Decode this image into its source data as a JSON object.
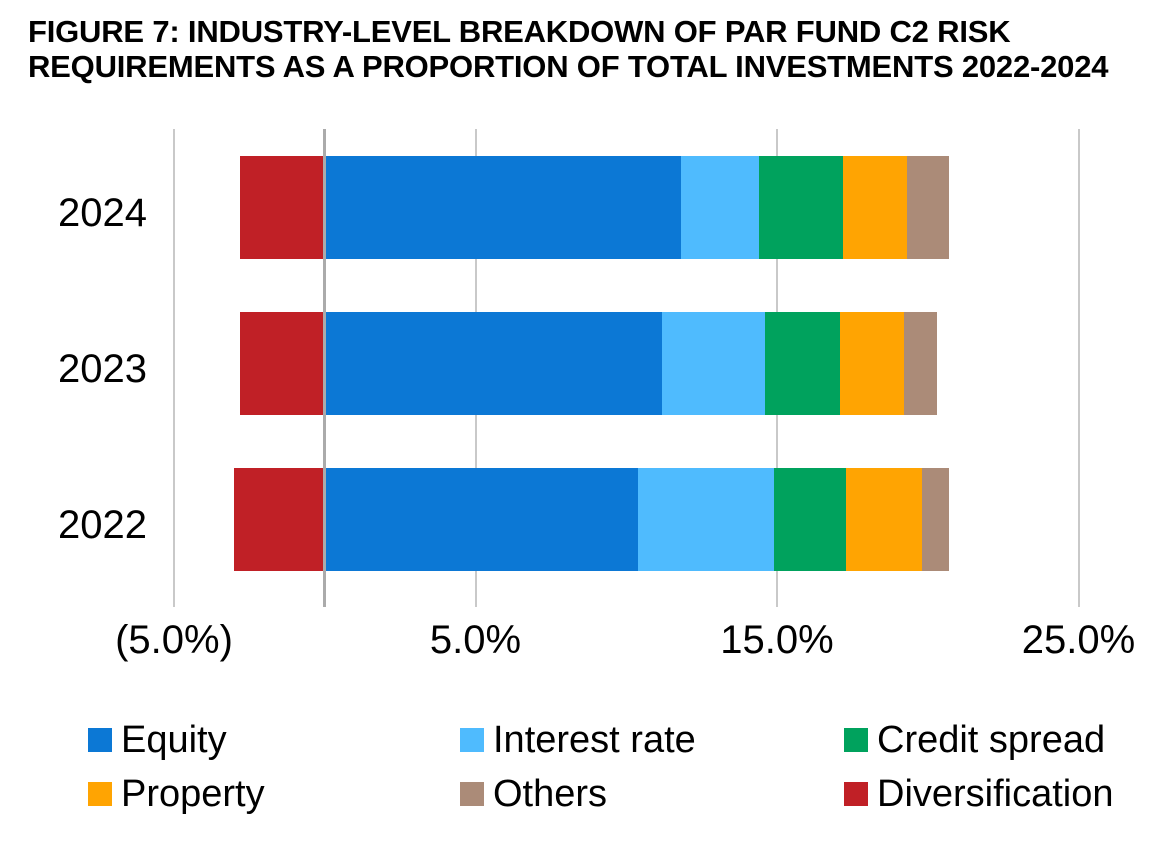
{
  "title": {
    "line1": "FIGURE 7: INDUSTRY-LEVEL BREAKDOWN OF PAR FUND C2 RISK",
    "line2": "REQUIREMENTS AS A PROPORTION OF TOTAL INVESTMENTS 2022-2024"
  },
  "colors": {
    "background": "#FFFFFF",
    "text": "#000000",
    "gridline": "#C9C9C9",
    "zero_axis_line": "#ABABAB"
  },
  "chart_data": {
    "type": "bar",
    "variant": "horizontal-stacked",
    "title": "FIGURE 7: INDUSTRY-LEVEL BREAKDOWN OF PAR FUND C2 RISK REQUIREMENTS AS A PROPORTION OF TOTAL INVESTMENTS 2022-2024",
    "categories": [
      "2024",
      "2023",
      "2022"
    ],
    "series": [
      {
        "name": "Equity",
        "color": "#0C78D5",
        "values": [
          11.8,
          11.2,
          10.4
        ]
      },
      {
        "name": "Interest rate",
        "color": "#4FBBFE",
        "values": [
          2.6,
          3.4,
          4.5
        ]
      },
      {
        "name": "Credit spread",
        "color": "#00A25D",
        "values": [
          2.8,
          2.5,
          2.4
        ]
      },
      {
        "name": "Property",
        "color": "#FFA402",
        "values": [
          2.1,
          2.1,
          2.5
        ]
      },
      {
        "name": "Others",
        "color": "#AB8B78",
        "values": [
          1.4,
          1.1,
          0.9
        ]
      },
      {
        "name": "Diversification",
        "color": "#C02026",
        "values": [
          -2.8,
          -2.8,
          -3.0
        ]
      }
    ],
    "x_axis": {
      "unit": "percent",
      "tick_labels": [
        "(5.0%)",
        "5.0%",
        "15.0%",
        "25.0%"
      ],
      "tick_values": [
        -5,
        5,
        15,
        25
      ],
      "xlim": [
        -5.2,
        28
      ],
      "number_format": "negatives shown in parentheses",
      "zero_axis_line": true
    },
    "grid": "vertical major gridlines",
    "legend_position": "bottom",
    "legend_order": [
      "Equity",
      "Interest rate",
      "Credit spread",
      "Property",
      "Others",
      "Diversification"
    ]
  }
}
